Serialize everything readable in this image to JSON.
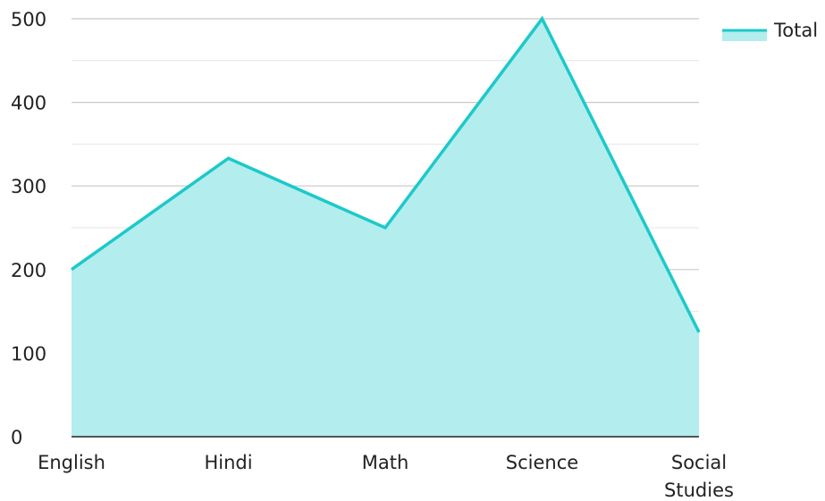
{
  "chart_data": {
    "type": "area",
    "categories": [
      "English",
      "Hindi",
      "Math",
      "Science",
      "Social Studies"
    ],
    "category_lines": [
      [
        "English"
      ],
      [
        "Hindi"
      ],
      [
        "Math"
      ],
      [
        "Science"
      ],
      [
        "Social",
        "Studies"
      ]
    ],
    "series": [
      {
        "name": "Total",
        "values": [
          200,
          333,
          250,
          500,
          125
        ]
      }
    ],
    "title": "",
    "xlabel": "",
    "ylabel": "",
    "ylim": [
      0,
      500
    ],
    "yticks": [
      0,
      100,
      200,
      300,
      400,
      500
    ],
    "grid": true,
    "legend_position": "top-right",
    "colors": {
      "line": "#1cc9c9",
      "fill": "#b3eded",
      "grid_major": "#c8c8c8",
      "grid_minor": "#e6e6e6",
      "axis": "#222222"
    }
  }
}
